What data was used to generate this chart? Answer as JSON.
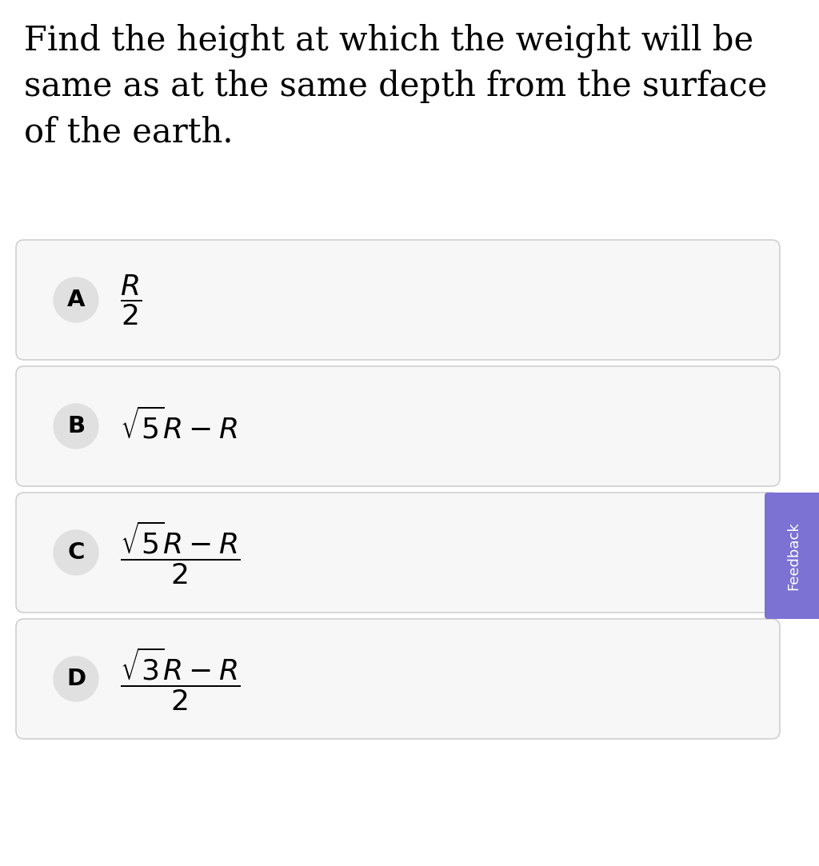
{
  "title": "Find the height at which the weight will be\nsame as at the same depth from the surface\nof the earth.",
  "title_fontsize": 30,
  "bg_color": "#ffffff",
  "option_box_facecolor": "#f7f7f7",
  "option_box_edge_color": "#d0d0d0",
  "option_label_bg": "#e0e0e0",
  "option_label_color": "#000000",
  "feedback_bg": "#7b72d4",
  "feedback_text": "Feedback",
  "math_exprs": [
    "$\\dfrac{R}{2}$",
    "$\\sqrt{5}R - R$",
    "$\\dfrac{\\sqrt{5}R - R}{2}$",
    "$\\dfrac{\\sqrt{3}R - R}{2}$"
  ],
  "option_labels": [
    "A",
    "B",
    "C",
    "D"
  ]
}
